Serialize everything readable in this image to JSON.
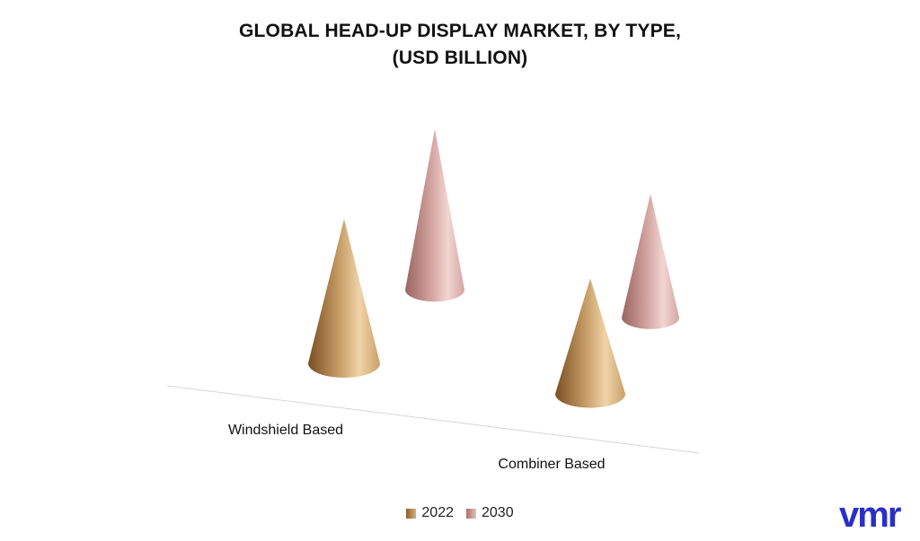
{
  "title_line1": "GLOBAL HEAD-UP DISPLAY MARKET, BY TYPE,",
  "title_line2": "(USD BILLION)",
  "brand": "vmr",
  "colors": {
    "2022": "#c9a06a",
    "2030": "#d4a5a1"
  },
  "chart_data": {
    "type": "bar",
    "style": "3d-cone",
    "title": "GLOBAL HEAD-UP DISPLAY MARKET, BY TYPE, (USD BILLION)",
    "categories": [
      "Windshield Based",
      "Combiner Based"
    ],
    "series": [
      {
        "name": "2022",
        "values": [
          1.75,
          1.4
        ]
      },
      {
        "name": "2030",
        "values": [
          1.95,
          1.5
        ]
      }
    ],
    "ylim": [
      0,
      2.2
    ],
    "grid": false,
    "legend_position": "bottom"
  }
}
